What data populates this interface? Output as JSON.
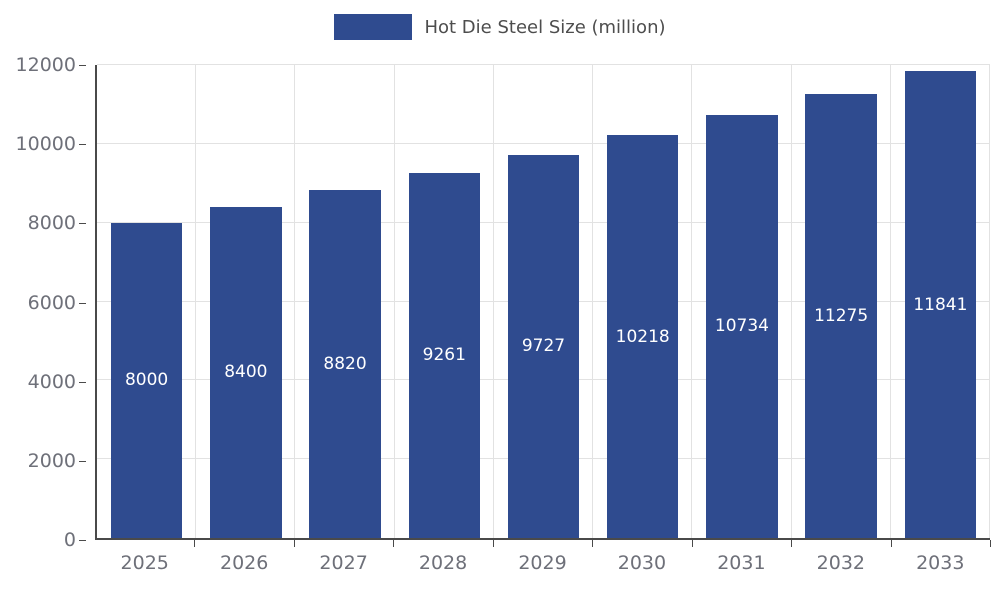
{
  "legend": {
    "label": "Hot Die Steel Size (million)"
  },
  "colors": {
    "bar": "#2f4b8f",
    "grid": "#e2e2e2",
    "axis": "#4a4a4a",
    "tick_text": "#6e7079",
    "bar_label_text": "#ffffff"
  },
  "chart_data": {
    "type": "bar",
    "title": "Hot Die Steel Size (million)",
    "categories": [
      "2025",
      "2026",
      "2027",
      "2028",
      "2029",
      "2030",
      "2031",
      "2032",
      "2033"
    ],
    "values": [
      8000,
      8400,
      8820,
      9261,
      9727,
      10218,
      10734,
      11275,
      11841
    ],
    "xlabel": "",
    "ylabel": "",
    "ylim": [
      0,
      12000
    ],
    "ytick_step": 2000,
    "yticks": [
      0,
      2000,
      4000,
      6000,
      8000,
      10000,
      12000
    ],
    "grid": true,
    "legend_position": "top",
    "bar_label_position": "inside-center"
  }
}
